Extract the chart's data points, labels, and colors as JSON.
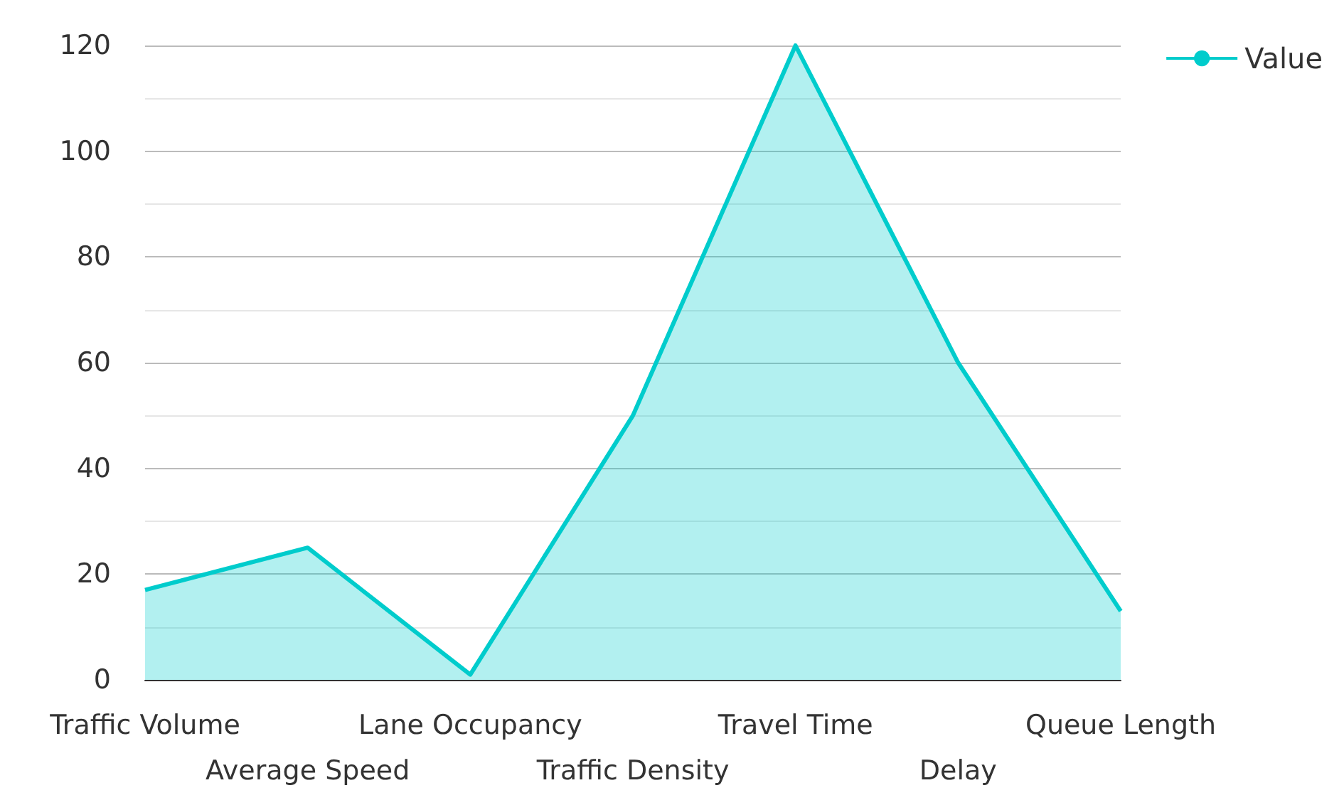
{
  "chart_data": {
    "type": "area",
    "categories": [
      "Traffic Volume",
      "Average Speed",
      "Lane Occupancy",
      "Traffic Density",
      "Travel Time",
      "Delay",
      "Queue Length"
    ],
    "series": [
      {
        "name": "Value",
        "color": "#00cccc",
        "values": [
          17,
          25,
          1,
          50,
          120,
          60,
          13
        ]
      }
    ],
    "ylim": [
      0,
      120
    ],
    "yticks": [
      0,
      20,
      40,
      60,
      80,
      100,
      120
    ],
    "grid": "y",
    "legend": "top right",
    "marker": "none"
  }
}
